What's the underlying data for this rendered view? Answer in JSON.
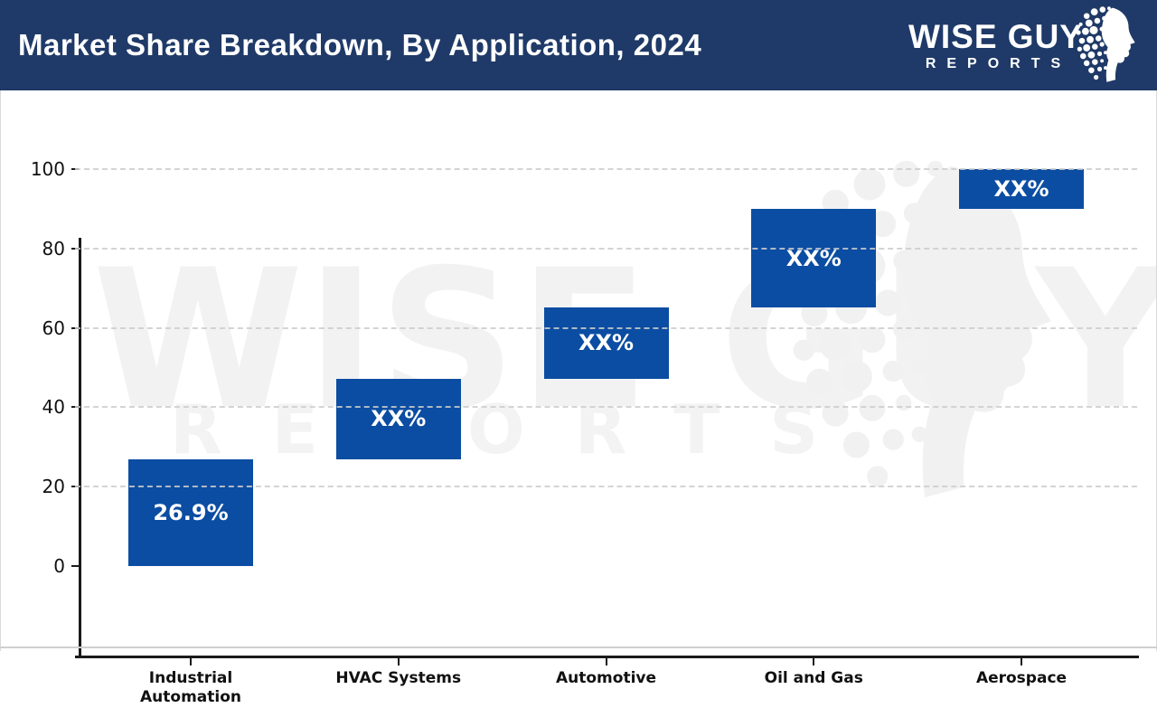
{
  "header": {
    "title": "Market Share Breakdown, By Application, 2024",
    "logo": {
      "line1": "WISE GUY",
      "line2": "REPORTS"
    }
  },
  "watermark": {
    "line1": "WISE GUY",
    "line2": "REPORTS"
  },
  "chart_data": {
    "type": "bar",
    "subtype": "waterfall",
    "title": "Market Share Breakdown, By Application, 2024",
    "categories": [
      "Industrial Automation",
      "HVAC Systems",
      "Automotive",
      "Oil and Gas",
      "Aerospace"
    ],
    "series": [
      {
        "name": "Market Share (%)",
        "segments": [
          {
            "category": "Industrial Automation",
            "start": 0,
            "end": 26.9,
            "label": "26.9%"
          },
          {
            "category": "HVAC Systems",
            "start": 26.9,
            "end": 47.2,
            "label": "XX%"
          },
          {
            "category": "Automotive",
            "start": 47.2,
            "end": 65.1,
            "label": "XX%"
          },
          {
            "category": "Oil and Gas",
            "start": 65.1,
            "end": 90,
            "label": "XX%"
          },
          {
            "category": "Aerospace",
            "start": 90,
            "end": 100,
            "label": "XX%"
          }
        ]
      }
    ],
    "xlabel": "",
    "ylabel": "",
    "ylim": [
      0,
      100
    ],
    "yticks": [
      0,
      20,
      40,
      60,
      80,
      100
    ],
    "grid": "horizontal dashed, drawn above bars",
    "legend": "none"
  },
  "colors": {
    "header_bg": "#1f3a68",
    "bar": "#0b4da2",
    "bar_label": "#ffffff",
    "gridline": "#cdcdcd",
    "axis": "#1a1a1a",
    "watermark": "#f2f2f2"
  }
}
